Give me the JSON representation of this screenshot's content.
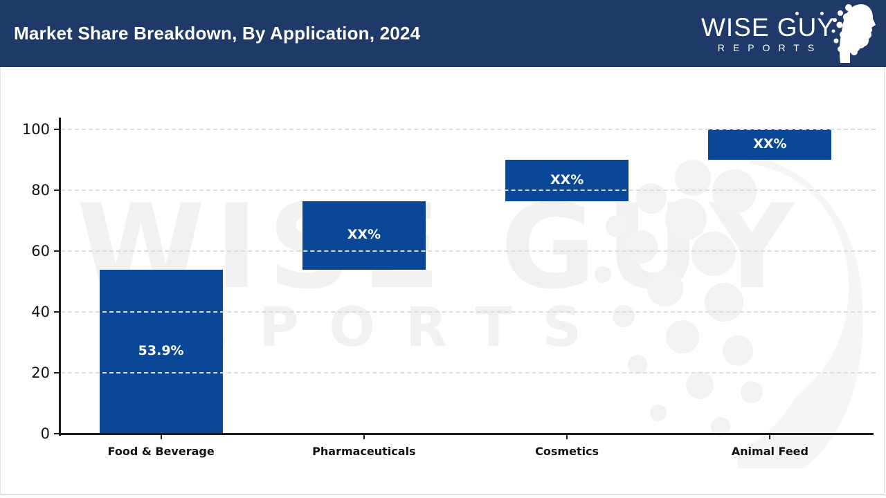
{
  "header": {
    "title": "Market Share Breakdown, By Application, 2024",
    "logo": {
      "line1": "WISE GUY",
      "line2": "REPORTS"
    }
  },
  "watermark": {
    "line1": "WISE GUY",
    "line2": "REPORTS"
  },
  "colors": {
    "header_bg": "#1f3a68",
    "bar": "#0a4797",
    "bar_label": "#ffffff",
    "grid": "#dcdcdc",
    "axis": "#1c1c1c",
    "watermark": "#f1f1f1"
  },
  "chart_data": {
    "type": "bar",
    "variant": "waterfall",
    "title": "Market Share Breakdown, By Application, 2024",
    "categories": [
      "Food & Beverage",
      "Pharmaceuticals",
      "Cosmetics",
      "Animal Feed"
    ],
    "segments": [
      {
        "category": "Food & Beverage",
        "start": 0,
        "end": 53.9,
        "label": "53.9%"
      },
      {
        "category": "Pharmaceuticals",
        "start": 53.9,
        "end": 76.4,
        "label": "XX%"
      },
      {
        "category": "Cosmetics",
        "start": 76.4,
        "end": 90.1,
        "label": "XX%"
      },
      {
        "category": "Animal Feed",
        "start": 90.1,
        "end": 100,
        "label": "XX%"
      }
    ],
    "ylim": [
      0,
      105
    ],
    "yticks": [
      0,
      20,
      40,
      60,
      80,
      100
    ],
    "grid": "dashed-horizontal-above-bars",
    "legend": "none",
    "xlabel": "",
    "ylabel": ""
  }
}
